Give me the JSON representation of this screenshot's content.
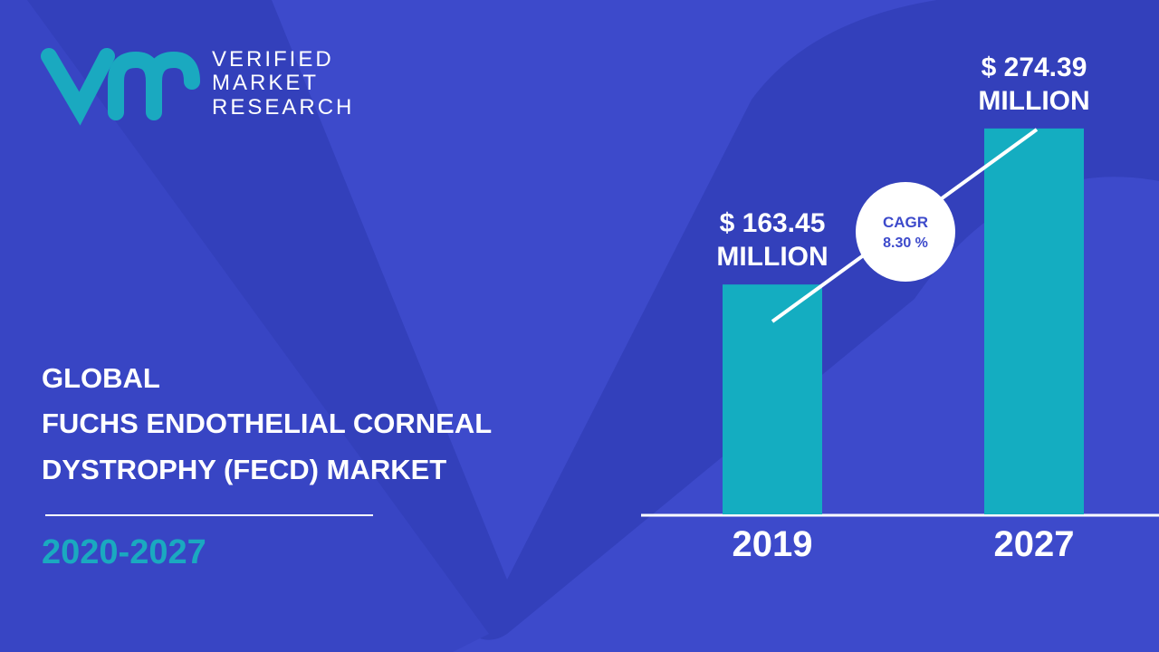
{
  "logo": {
    "lines": [
      "VERIFIED",
      "MARKET",
      "RESEARCH"
    ]
  },
  "title_lines": [
    "GLOBAL",
    "FUCHS ENDOTHELIAL CORNEAL",
    "DYSTROPHY (FECD) MARKET"
  ],
  "period": "2020-2027",
  "chart_data": {
    "type": "bar",
    "categories": [
      "2019",
      "2027"
    ],
    "values": [
      163.45,
      274.39
    ],
    "value_labels": [
      "$ 163.45 MILLION",
      "$ 274.39 MILLION"
    ],
    "color": "#14adc1",
    "annotations": [
      "CAGR",
      "8.30 %"
    ]
  }
}
